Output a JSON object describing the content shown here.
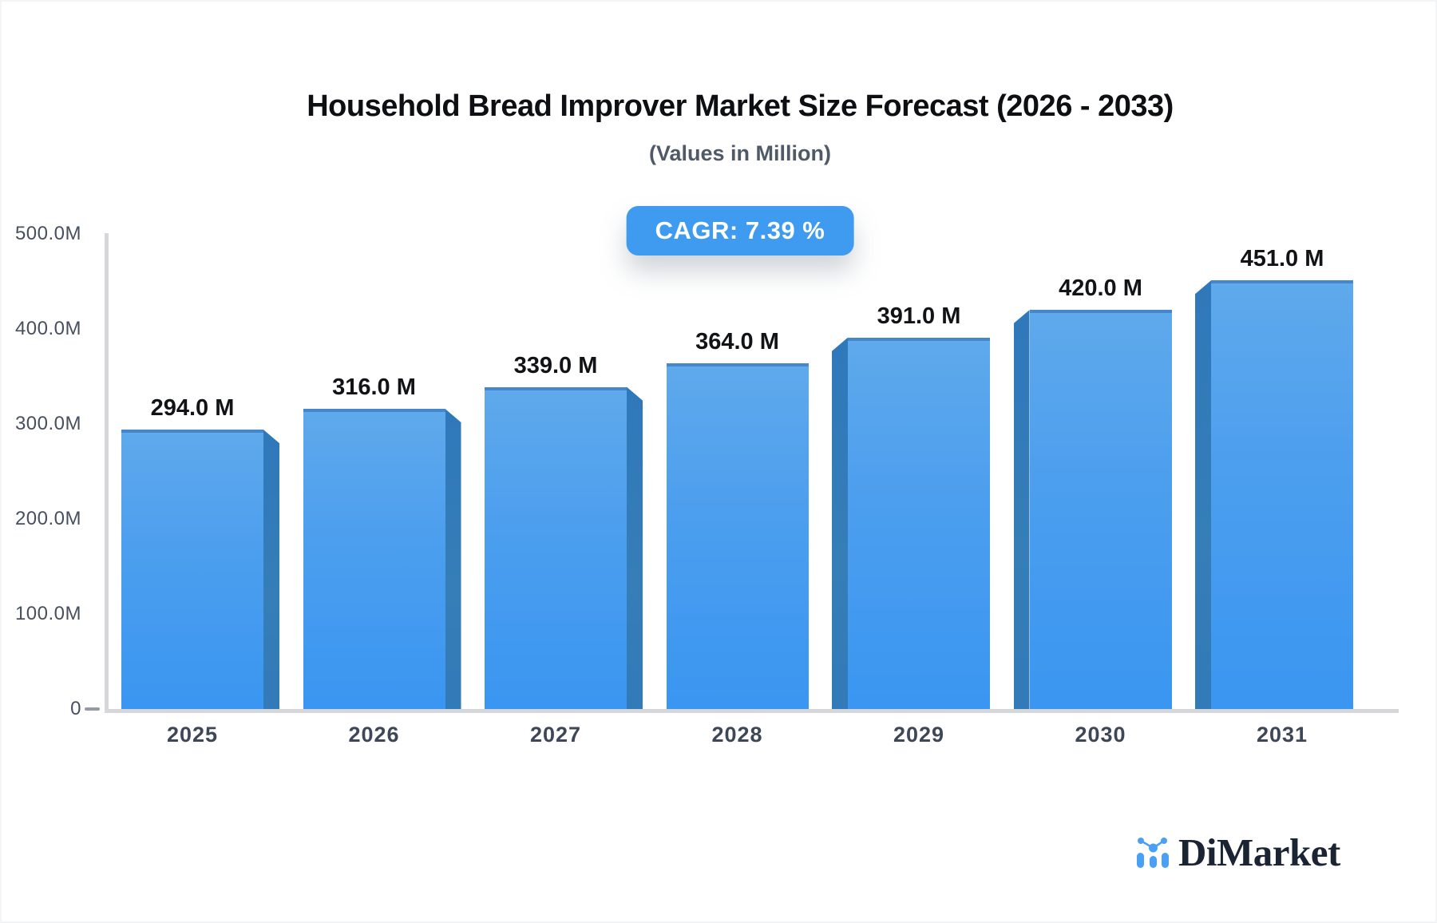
{
  "header": {
    "title": "Household Bread Improver Market Size Forecast (2026 - 2033)",
    "subtitle": "(Values in Million)"
  },
  "badge": {
    "label": "CAGR: 7.39 %"
  },
  "chart_data": {
    "type": "bar",
    "title": "Household Bread Improver Market Size Forecast (2026 - 2033)",
    "subtitle": "(Values in Million)",
    "cagr_percent": 7.39,
    "unit": "Million",
    "categories": [
      "2025",
      "2026",
      "2027",
      "2028",
      "2029",
      "2030",
      "2031"
    ],
    "values": [
      294,
      316,
      339,
      364,
      391,
      420,
      451
    ],
    "value_labels": [
      "294.0 M",
      "316.0 M",
      "339.0 M",
      "364.0 M",
      "391.0 M",
      "420.0 M",
      "451.0 M"
    ],
    "xlabel": "",
    "ylabel": "",
    "ylim": [
      0,
      500
    ],
    "y_ticks": [
      {
        "label": "500.0M",
        "value": 500
      },
      {
        "label": "400.0M",
        "value": 400
      },
      {
        "label": "300.0M",
        "value": 300
      },
      {
        "label": "200.0M",
        "value": 200
      },
      {
        "label": "100.0M",
        "value": 100
      },
      {
        "label": "0",
        "value": 0
      }
    ],
    "grid": false,
    "legend": null,
    "bar_style": "3d-bevel"
  },
  "theme": {
    "accent": "#3e9bf0",
    "bar_top": "#5fa9ec",
    "bar_bottom": "#3a96f1",
    "bar_side": "#2f78ba",
    "bar_edge": "#4587cb",
    "axis": "#d5d7da"
  },
  "footer": {
    "brand": "DiMarket"
  }
}
